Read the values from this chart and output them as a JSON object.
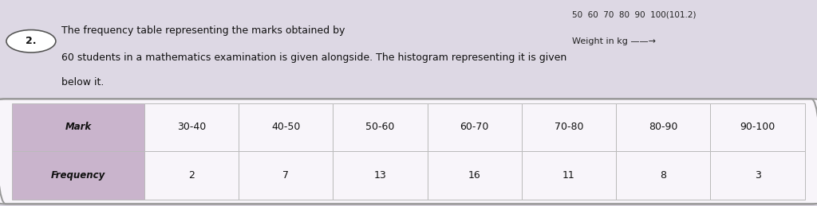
{
  "question_number": "2.",
  "text_line1": "The frequency table representing the marks obtained by",
  "text_line2": "60 students in a mathematics examination is given alongside. The histogram representing it is given",
  "text_line3": "below it.",
  "top_right_text": "Weight in kg ——→",
  "top_right_axis": "50  60  70  80  90  100(101.2)",
  "header_row": [
    "Mark",
    "30-40",
    "40-50",
    "50-60",
    "60-70",
    "70-80",
    "80-90",
    "90-100"
  ],
  "data_row": [
    "Frequency",
    "2",
    "7",
    "13",
    "16",
    "11",
    "8",
    "3"
  ],
  "header_col_bg": "#c9b4cc",
  "table_bg": "#f5f2f7",
  "border_color": "#aaaaaa",
  "text_color": "#111111",
  "background_color": "#c8bcd2",
  "page_bg": "#ddd8e4"
}
